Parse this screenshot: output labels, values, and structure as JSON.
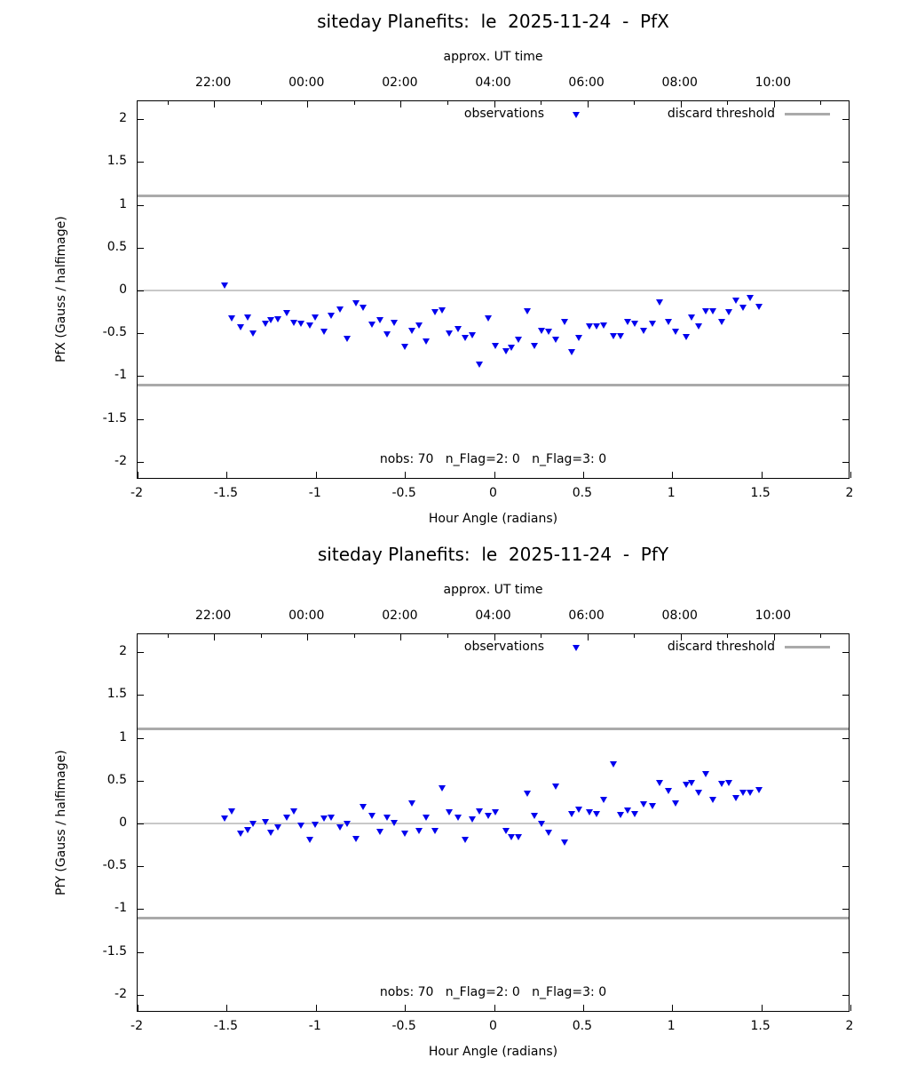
{
  "page": {
    "background": "#ffffff",
    "marker_color": "#0000ee",
    "threshold_color": "#aaaaaa",
    "zero_line_color": "#c8c8c8"
  },
  "chart_data": [
    {
      "type": "scatter",
      "title": "siteday Planefits:  le  2025-11-24  -  PfX",
      "top_axis_label": "approx. UT time",
      "top_axis_ticks": [
        "22:00",
        "00:00",
        "02:00",
        "04:00",
        "06:00",
        "08:00",
        "10:00"
      ],
      "top_axis_tick_ha": [
        -1.5708,
        -1.0472,
        -0.5236,
        0,
        0.5236,
        1.0472,
        1.5708
      ],
      "top_axis_minor_step_ha": 0.261799,
      "xlabel": "Hour Angle (radians)",
      "ylabel": "PfX (Gauss / halfimage)",
      "xlim": [
        -2,
        2
      ],
      "ylim": [
        -2.21,
        2.21
      ],
      "xticks": [
        -2,
        -1.5,
        -1,
        -0.5,
        0,
        0.5,
        1,
        1.5,
        2
      ],
      "yticks": [
        2,
        1.5,
        1,
        0.5,
        0,
        -0.5,
        -1,
        -1.5,
        -2
      ],
      "zero_line": 0,
      "discard_threshold": [
        1.1,
        -1.1
      ],
      "legend": {
        "observations_label": "observations",
        "threshold_label": "discard threshold",
        "position": "top-right-horizontal"
      },
      "annotation": "nobs: 70   n_Flag=2: 0   n_Flag=3: 0",
      "marker": {
        "shape": "triangle-down",
        "color": "#0000ee"
      },
      "series": [
        {
          "name": "observations",
          "points": [
            [
              -1.51,
              0.06
            ],
            [
              -1.47,
              -0.33
            ],
            [
              -1.42,
              -0.43
            ],
            [
              -1.38,
              -0.32
            ],
            [
              -1.35,
              -0.5
            ],
            [
              -1.28,
              -0.39
            ],
            [
              -1.25,
              -0.35
            ],
            [
              -1.21,
              -0.34
            ],
            [
              -1.16,
              -0.26
            ],
            [
              -1.12,
              -0.38
            ],
            [
              -1.08,
              -0.39
            ],
            [
              -1.03,
              -0.41
            ],
            [
              -1.0,
              -0.32
            ],
            [
              -0.95,
              -0.48
            ],
            [
              -0.91,
              -0.3
            ],
            [
              -0.86,
              -0.22
            ],
            [
              -0.82,
              -0.57
            ],
            [
              -0.77,
              -0.15
            ],
            [
              -0.73,
              -0.2
            ],
            [
              -0.68,
              -0.4
            ],
            [
              -0.64,
              -0.35
            ],
            [
              -0.6,
              -0.51
            ],
            [
              -0.56,
              -0.38
            ],
            [
              -0.5,
              -0.66
            ],
            [
              -0.46,
              -0.47
            ],
            [
              -0.42,
              -0.41
            ],
            [
              -0.38,
              -0.6
            ],
            [
              -0.33,
              -0.25
            ],
            [
              -0.29,
              -0.23
            ],
            [
              -0.25,
              -0.5
            ],
            [
              -0.2,
              -0.45
            ],
            [
              -0.16,
              -0.56
            ],
            [
              -0.12,
              -0.52
            ],
            [
              -0.08,
              -0.87
            ],
            [
              -0.03,
              -0.33
            ],
            [
              0.01,
              -0.65
            ],
            [
              0.07,
              -0.71
            ],
            [
              0.1,
              -0.67
            ],
            [
              0.14,
              -0.58
            ],
            [
              0.19,
              -0.24
            ],
            [
              0.23,
              -0.65
            ],
            [
              0.27,
              -0.47
            ],
            [
              0.31,
              -0.48
            ],
            [
              0.35,
              -0.58
            ],
            [
              0.4,
              -0.37
            ],
            [
              0.44,
              -0.72
            ],
            [
              0.48,
              -0.56
            ],
            [
              0.54,
              -0.42
            ],
            [
              0.58,
              -0.42
            ],
            [
              0.62,
              -0.41
            ],
            [
              0.67,
              -0.53
            ],
            [
              0.71,
              -0.53
            ],
            [
              0.75,
              -0.37
            ],
            [
              0.79,
              -0.39
            ],
            [
              0.84,
              -0.47
            ],
            [
              0.89,
              -0.39
            ],
            [
              0.93,
              -0.14
            ],
            [
              0.98,
              -0.37
            ],
            [
              1.02,
              -0.48
            ],
            [
              1.08,
              -0.54
            ],
            [
              1.11,
              -0.32
            ],
            [
              1.15,
              -0.42
            ],
            [
              1.19,
              -0.24
            ],
            [
              1.23,
              -0.24
            ],
            [
              1.28,
              -0.37
            ],
            [
              1.32,
              -0.25
            ],
            [
              1.36,
              -0.12
            ],
            [
              1.4,
              -0.2
            ],
            [
              1.44,
              -0.09
            ],
            [
              1.49,
              -0.19
            ]
          ]
        }
      ]
    },
    {
      "type": "scatter",
      "title": "siteday Planefits:  le  2025-11-24  -  PfY",
      "top_axis_label": "approx. UT time",
      "top_axis_ticks": [
        "22:00",
        "00:00",
        "02:00",
        "04:00",
        "06:00",
        "08:00",
        "10:00"
      ],
      "top_axis_tick_ha": [
        -1.5708,
        -1.0472,
        -0.5236,
        0,
        0.5236,
        1.0472,
        1.5708
      ],
      "top_axis_minor_step_ha": 0.261799,
      "xlabel": "Hour Angle (radians)",
      "ylabel": "PfY (Gauss / halfimage)",
      "xlim": [
        -2,
        2
      ],
      "ylim": [
        -2.21,
        2.21
      ],
      "xticks": [
        -2,
        -1.5,
        -1,
        -0.5,
        0,
        0.5,
        1,
        1.5,
        2
      ],
      "yticks": [
        2,
        1.5,
        1,
        0.5,
        0,
        -0.5,
        -1,
        -1.5,
        -2
      ],
      "zero_line": 0,
      "discard_threshold": [
        1.1,
        -1.1
      ],
      "legend": {
        "observations_label": "observations",
        "threshold_label": "discard threshold",
        "position": "top-right-horizontal"
      },
      "annotation": "nobs: 70   n_Flag=2: 0   n_Flag=3: 0",
      "marker": {
        "shape": "triangle-down",
        "color": "#0000ee"
      },
      "series": [
        {
          "name": "observations",
          "points": [
            [
              -1.51,
              0.06
            ],
            [
              -1.47,
              0.14
            ],
            [
              -1.42,
              -0.12
            ],
            [
              -1.38,
              -0.08
            ],
            [
              -1.35,
              -0.01
            ],
            [
              -1.28,
              0.02
            ],
            [
              -1.25,
              -0.11
            ],
            [
              -1.21,
              -0.05
            ],
            [
              -1.16,
              0.07
            ],
            [
              -1.12,
              0.14
            ],
            [
              -1.08,
              -0.03
            ],
            [
              -1.03,
              -0.19
            ],
            [
              -1.0,
              -0.02
            ],
            [
              -0.95,
              0.06
            ],
            [
              -0.91,
              0.07
            ],
            [
              -0.86,
              -0.05
            ],
            [
              -0.82,
              -0.01
            ],
            [
              -0.77,
              -0.18
            ],
            [
              -0.73,
              0.19
            ],
            [
              -0.68,
              0.09
            ],
            [
              -0.64,
              -0.1
            ],
            [
              -0.6,
              0.07
            ],
            [
              -0.56,
              0.01
            ],
            [
              -0.5,
              -0.12
            ],
            [
              -0.46,
              0.23
            ],
            [
              -0.42,
              -0.09
            ],
            [
              -0.38,
              0.07
            ],
            [
              -0.33,
              -0.09
            ],
            [
              -0.29,
              0.41
            ],
            [
              -0.25,
              0.13
            ],
            [
              -0.2,
              0.07
            ],
            [
              -0.16,
              -0.19
            ],
            [
              -0.12,
              0.05
            ],
            [
              -0.08,
              0.14
            ],
            [
              -0.03,
              0.09
            ],
            [
              0.01,
              0.13
            ],
            [
              0.07,
              -0.09
            ],
            [
              0.1,
              -0.16
            ],
            [
              0.14,
              -0.16
            ],
            [
              0.19,
              0.35
            ],
            [
              0.23,
              0.09
            ],
            [
              0.27,
              0.0
            ],
            [
              0.31,
              -0.11
            ],
            [
              0.35,
              0.43
            ],
            [
              0.4,
              -0.22
            ],
            [
              0.44,
              0.11
            ],
            [
              0.48,
              0.16
            ],
            [
              0.54,
              0.13
            ],
            [
              0.58,
              0.11
            ],
            [
              0.62,
              0.28
            ],
            [
              0.67,
              0.69
            ],
            [
              0.71,
              0.1
            ],
            [
              0.75,
              0.15
            ],
            [
              0.79,
              0.11
            ],
            [
              0.84,
              0.22
            ],
            [
              0.89,
              0.2
            ],
            [
              0.93,
              0.47
            ],
            [
              0.98,
              0.38
            ],
            [
              1.02,
              0.23
            ],
            [
              1.08,
              0.45
            ],
            [
              1.11,
              0.47
            ],
            [
              1.15,
              0.36
            ],
            [
              1.19,
              0.58
            ],
            [
              1.23,
              0.28
            ],
            [
              1.28,
              0.46
            ],
            [
              1.32,
              0.47
            ],
            [
              1.36,
              0.3
            ],
            [
              1.4,
              0.36
            ],
            [
              1.44,
              0.36
            ],
            [
              1.49,
              0.39
            ]
          ]
        }
      ]
    }
  ]
}
